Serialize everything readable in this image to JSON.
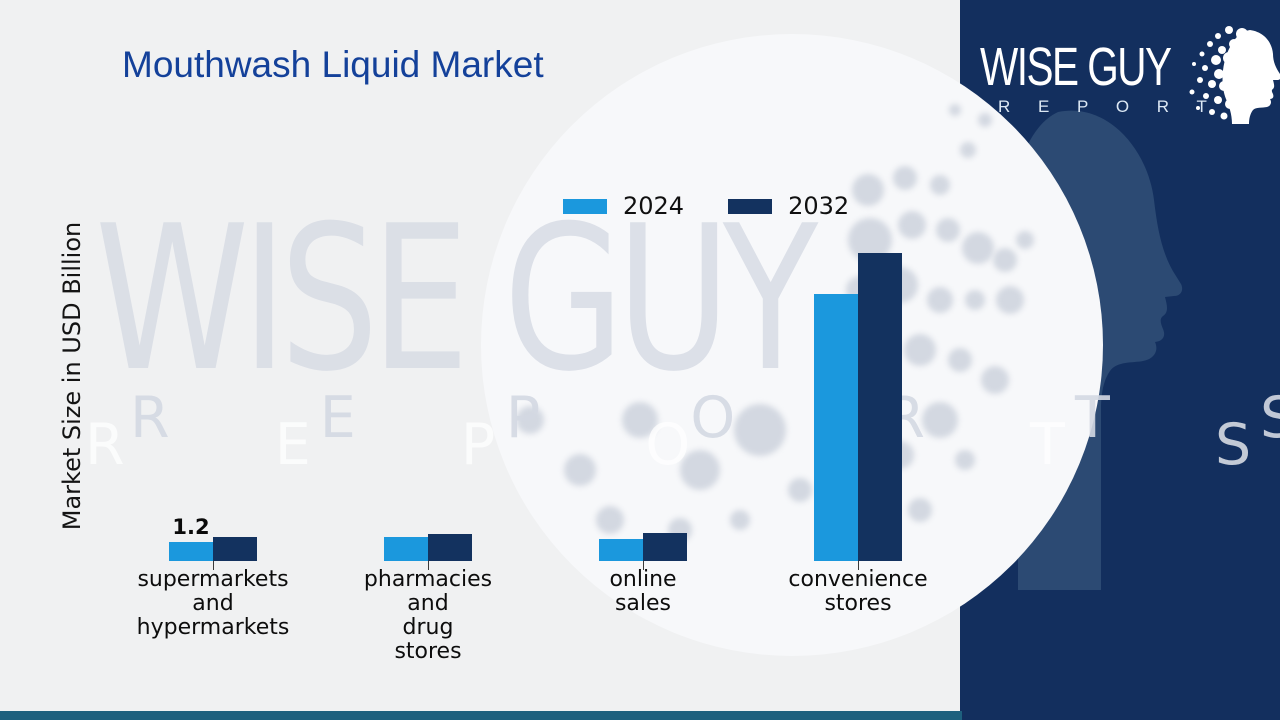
{
  "title": "Mouthwash Liquid Market",
  "watermark": {
    "line1": "WISE GUY",
    "line2": "R E P O R T S"
  },
  "logo": {
    "line1": "WISE GUY",
    "line2": "R E P O R T S"
  },
  "colors": {
    "series_2024": "#1b98dd",
    "series_2032": "#13325f",
    "panel_navy": "#132f5e",
    "face_navy": "#2c4a73",
    "footer_teal": "#1e607e",
    "title_blue": "#14419a",
    "background": "#f0f1f2",
    "watermark_gray": "#d8dce5"
  },
  "chart_data": {
    "type": "bar",
    "title": "Mouthwash Liquid Market",
    "xlabel": "",
    "ylabel": "Market Size in USD Billion",
    "categories": [
      "supermarkets and hypermarkets",
      "pharmacies and drug stores",
      "online sales",
      "convenience stores"
    ],
    "categories_display": [
      [
        "supermarkets",
        "and",
        "hypermarkets"
      ],
      [
        "pharmacies",
        "and",
        "drug",
        "stores"
      ],
      [
        "online",
        "sales"
      ],
      [
        "convenience",
        "stores"
      ]
    ],
    "series": [
      {
        "name": "2024",
        "values": [
          1.2,
          1.5,
          1.4,
          16.8
        ]
      },
      {
        "name": "2032",
        "values": [
          1.5,
          1.7,
          1.75,
          19.4
        ]
      }
    ],
    "bar_label": {
      "text": "1.2",
      "category_index": 0,
      "series_index": 0
    },
    "legend_position": "top-center",
    "grid": false,
    "y_axis_ticks_visible": false
  }
}
